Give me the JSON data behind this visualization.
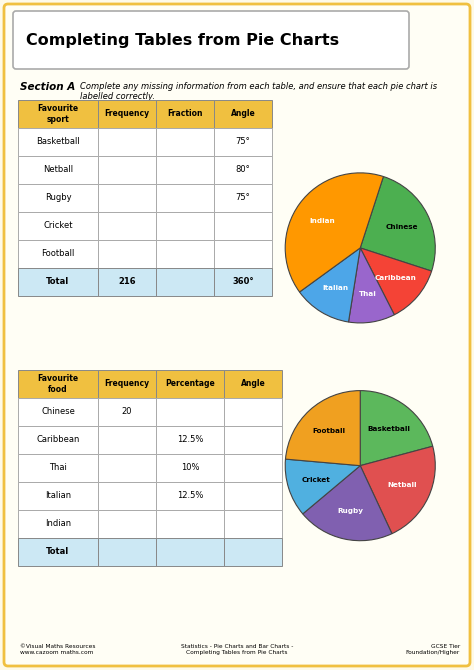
{
  "title": "Completing Tables from Pie Charts",
  "bg_outer": "#fefae8",
  "border_color": "#f0c040",
  "section_a_label": "Section A",
  "section_a_text": "Complete any missing information from each table, and ensure that each pie chart is\nlabelled correctly.",
  "table1_header": [
    "Favourite\nsport",
    "Frequency",
    "Fraction",
    "Angle"
  ],
  "table1_header_color": "#f0c040",
  "table1_rows": [
    [
      "Basketball",
      "",
      "",
      "75°"
    ],
    [
      "Netball",
      "",
      "",
      "80°"
    ],
    [
      "Rugby",
      "",
      "",
      "75°"
    ],
    [
      "Cricket",
      "",
      "",
      ""
    ],
    [
      "Football",
      "",
      "",
      ""
    ]
  ],
  "table1_total": [
    "Total",
    "216",
    "",
    "360°"
  ],
  "table1_total_color": "#cce8f4",
  "pie1_sizes": [
    75,
    80,
    75,
    45,
    85
  ],
  "pie1_labels": [
    "Basketball",
    "Netball",
    "Rugby",
    "Cricket",
    "Football"
  ],
  "pie1_colors": [
    "#5cb85c",
    "#e05050",
    "#8060b0",
    "#50b0e0",
    "#f0a020"
  ],
  "pie1_label_colors": [
    "#000000",
    "#ffffff",
    "#ffffff",
    "#000000",
    "#000000"
  ],
  "pie1_startangle": 90,
  "table2_header": [
    "Favourite\nfood",
    "Frequency",
    "Percentage",
    "Angle"
  ],
  "table2_header_color": "#f0c040",
  "table2_rows": [
    [
      "Chinese",
      "20",
      "",
      ""
    ],
    [
      "Caribbean",
      "",
      "12.5%",
      ""
    ],
    [
      "Thai",
      "",
      "10%",
      ""
    ],
    [
      "Italian",
      "",
      "12.5%",
      ""
    ],
    [
      "Indian",
      "",
      "",
      ""
    ]
  ],
  "table2_total": [
    "Total",
    "",
    "",
    ""
  ],
  "table2_total_color": "#cce8f4",
  "pie2_sizes": [
    25,
    12.5,
    10,
    12.5,
    40
  ],
  "pie2_labels": [
    "Chinese",
    "Caribbean",
    "Thai",
    "Italian",
    "Indian"
  ],
  "pie2_colors": [
    "#4caf50",
    "#f44336",
    "#9966cc",
    "#4da6e8",
    "#ff9800"
  ],
  "pie2_label_colors": [
    "#000000",
    "#ffffff",
    "#ffffff",
    "#ffffff",
    "#ffffff"
  ],
  "pie2_startangle": 72,
  "footer_left": "©Visual Maths Resources\nwww.cazoom maths.com",
  "footer_center": "Statistics - Pie Charts and Bar Charts -\nCompleting Tables from Pie Charts",
  "footer_right": "GCSE Tier\nFoundation/Higher"
}
